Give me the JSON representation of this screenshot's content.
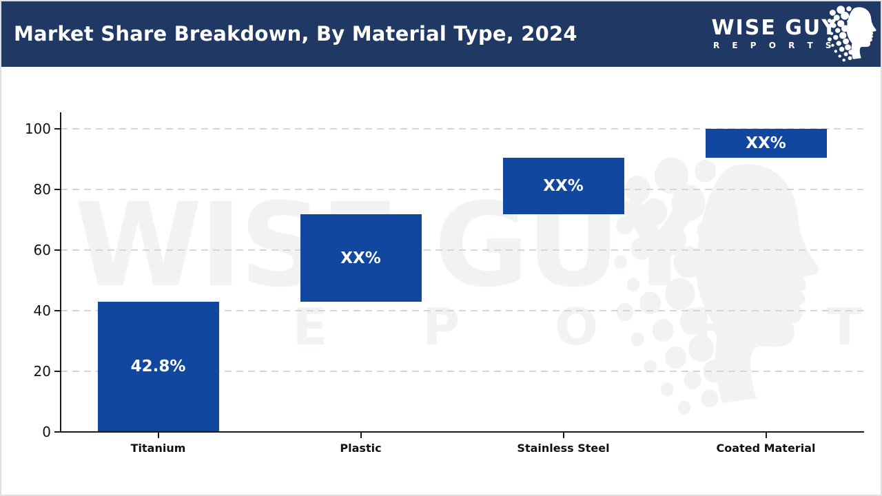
{
  "header": {
    "title": "Market Share Breakdown, By Material Type, 2024",
    "bg_color": "#1f3864",
    "logo": {
      "wordmark": "WISE GUY",
      "subtext": "R E P O R T S"
    }
  },
  "watermark": {
    "wordmark": "WISE GUY",
    "subtext": "R E P O R T S"
  },
  "chart_data": {
    "type": "bar",
    "subtype": "floating-waterfall",
    "title": "Market Share Breakdown, By Material Type, 2024",
    "xlabel": "",
    "ylabel": "",
    "categories": [
      "Titanium",
      "Plastic",
      "Stainless Steel",
      "Coated Material"
    ],
    "segments": [
      {
        "category": "Titanium",
        "start": 0,
        "end": 42.8,
        "label": "42.8%"
      },
      {
        "category": "Plastic",
        "start": 42.8,
        "end": 71.6,
        "label": "XX%"
      },
      {
        "category": "Stainless Steel",
        "start": 71.6,
        "end": 90.4,
        "label": "XX%"
      },
      {
        "category": "Coated Material",
        "start": 90.4,
        "end": 100,
        "label": "XX%"
      }
    ],
    "yticks": [
      0,
      20,
      40,
      60,
      80,
      100
    ],
    "ylim": [
      0,
      105.5
    ],
    "grid": "horizontal-dashed",
    "legend": "none",
    "bar_color": "#11479e",
    "bar_label_color": "#ffffff",
    "axis_color": "#1a1a1a",
    "tick_label_color": "#111111",
    "gridline_color": "#d6d6d6"
  }
}
